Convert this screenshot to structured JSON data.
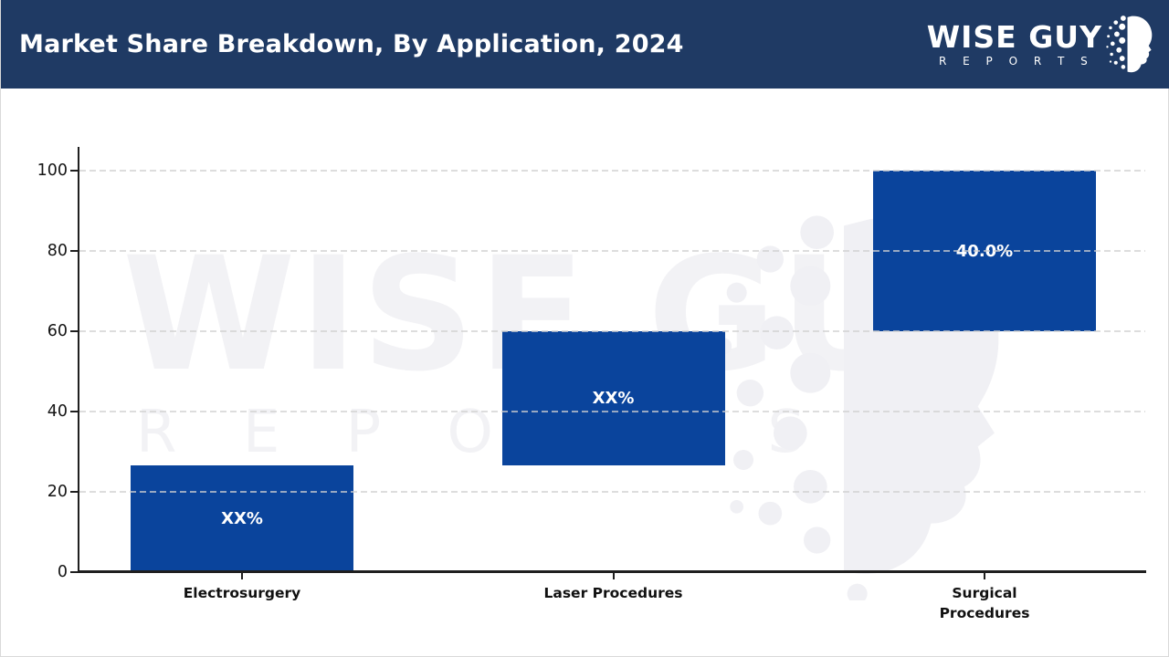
{
  "header": {
    "title": "Market Share Breakdown, By Application, 2024",
    "bg_color": "#1f3a64",
    "logo": {
      "line1": "WISE GUY",
      "line2": "R E P O R T S"
    }
  },
  "watermark": {
    "line1": "WISE GUY",
    "line2": "R E P O R T S"
  },
  "chart_data": {
    "type": "bar",
    "subtype": "waterfall",
    "title": "Market Share Breakdown, By Application, 2024",
    "categories": [
      "Electrosurgery",
      "Laser Procedures",
      "Surgical Procedures"
    ],
    "categories_lines": [
      [
        "Electrosurgery"
      ],
      [
        "Laser Procedures"
      ],
      [
        "Surgical",
        "Procedures"
      ]
    ],
    "segments": [
      {
        "start": 0,
        "end": 26.7,
        "value": 26.7,
        "label": "XX%"
      },
      {
        "start": 26.7,
        "end": 60,
        "value": 33.3,
        "label": "XX%"
      },
      {
        "start": 60,
        "end": 100,
        "value": 40.0,
        "label": "40.0%"
      }
    ],
    "y_ticks": [
      0,
      20,
      40,
      60,
      80,
      100
    ],
    "ylim": [
      0,
      100
    ],
    "xlabel": "",
    "ylabel": "",
    "grid": "horizontal-dashed",
    "legend": "none",
    "bar_color": "#0a449c",
    "grid_color": "#d9d9d9"
  }
}
